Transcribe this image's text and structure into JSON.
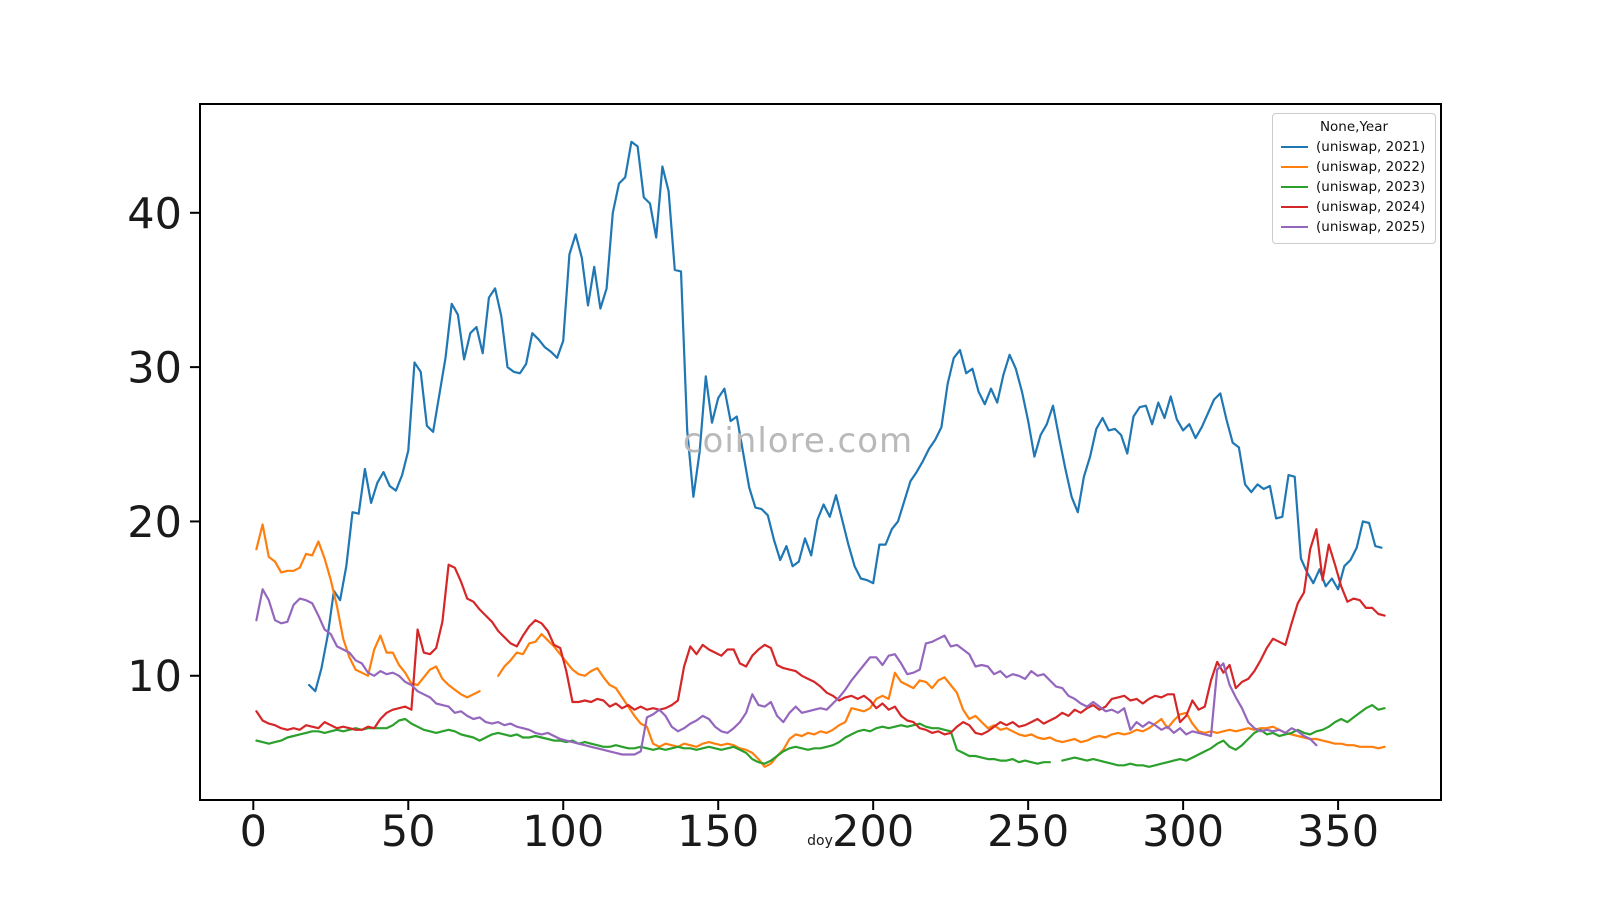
{
  "figure": {
    "watermark": "coinlore.com",
    "xlabel": "doy"
  },
  "legend": {
    "title": "None,Year",
    "entries": [
      {
        "label": "(uniswap, 2021)",
        "color": "#1f77b4"
      },
      {
        "label": "(uniswap, 2022)",
        "color": "#ff7f0e"
      },
      {
        "label": "(uniswap, 2023)",
        "color": "#2ca02c"
      },
      {
        "label": "(uniswap, 2024)",
        "color": "#d62728"
      },
      {
        "label": "(uniswap, 2025)",
        "color": "#9467bd"
      }
    ]
  },
  "axes": {
    "x_ticks": [
      "0",
      "50",
      "100",
      "150",
      "200",
      "250",
      "300",
      "350"
    ],
    "x_tick_values": [
      0,
      50,
      100,
      150,
      200,
      250,
      300,
      350
    ],
    "y_ticks": [
      "10",
      "20",
      "30",
      "40"
    ],
    "y_tick_values": [
      10,
      20,
      30,
      40
    ]
  },
  "chart_data": {
    "type": "line",
    "title": "",
    "xlabel": "doy",
    "ylabel": "",
    "x_unit": "day of year",
    "xlim": [
      -17.2,
      383.2
    ],
    "ylim": [
      1.95,
      47.05
    ],
    "grid": false,
    "legend_position": "upper right",
    "series": [
      {
        "name": "(uniswap, 2021)",
        "year": 2021,
        "color": "#1f77b4",
        "x_start": 18,
        "x_step": 2,
        "values": [
          9.4,
          9.0,
          10.5,
          12.6,
          15.5,
          14.9,
          17.1,
          20.6,
          20.5,
          23.4,
          21.2,
          22.5,
          23.2,
          22.3,
          22.0,
          23.0,
          24.6,
          30.3,
          29.7,
          26.2,
          25.8,
          28.2,
          30.6,
          34.1,
          33.4,
          30.5,
          32.2,
          32.6,
          30.9,
          34.5,
          35.1,
          33.3,
          30.0,
          29.7,
          29.6,
          30.2,
          32.2,
          31.8,
          31.3,
          31.0,
          30.6,
          31.7,
          37.3,
          38.6,
          37.1,
          34.0,
          36.5,
          33.8,
          35.1,
          40.0,
          41.9,
          42.3,
          44.6,
          44.3,
          41.0,
          40.6,
          38.4,
          43.0,
          41.4,
          36.3,
          36.2,
          25.9,
          21.6,
          24.5,
          29.4,
          26.4,
          28.0,
          28.6,
          26.5,
          26.8,
          24.5,
          22.2,
          20.9,
          20.8,
          20.4,
          18.8,
          17.5,
          18.4,
          17.1,
          17.4,
          18.9,
          17.8,
          20.1,
          21.1,
          20.3,
          21.7,
          20.1,
          18.5,
          17.1,
          16.3,
          16.2,
          16.0,
          18.5,
          18.5,
          19.5,
          20.0,
          21.3,
          22.6,
          23.2,
          23.9,
          24.7,
          25.3,
          26.1,
          28.9,
          30.6,
          31.1,
          29.6,
          29.9,
          28.4,
          27.6,
          28.6,
          27.7,
          29.5,
          30.8,
          29.9,
          28.4,
          26.5,
          24.2,
          25.6,
          26.3,
          27.5,
          25.4,
          23.4,
          21.6,
          20.6,
          22.9,
          24.2,
          26.0,
          26.7,
          25.9,
          26.0,
          25.6,
          24.4,
          26.8,
          27.4,
          27.5,
          26.3,
          27.7,
          26.7,
          28.1,
          26.6,
          25.9,
          26.3,
          25.4,
          26.1,
          27.0,
          27.9,
          28.3,
          26.6,
          25.1,
          24.8,
          22.4,
          21.9,
          22.4,
          22.1,
          22.3,
          20.2,
          20.3,
          23.0,
          22.9,
          17.6,
          16.7,
          16.0,
          16.9,
          15.8,
          16.3,
          15.6,
          17.1,
          17.5,
          18.3,
          20.0,
          19.9,
          18.4,
          18.3
        ]
      },
      {
        "name": "(uniswap, 2022)",
        "year": 2022,
        "color": "#ff7f0e",
        "x_start": 1,
        "x_step": 2,
        "values": [
          18.2,
          19.8,
          17.7,
          17.4,
          16.7,
          16.8,
          16.8,
          17.0,
          17.9,
          17.8,
          18.7,
          17.6,
          16.2,
          14.5,
          12.4,
          11.2,
          10.4,
          10.2,
          10.0,
          11.7,
          12.6,
          11.5,
          11.5,
          10.7,
          10.2,
          9.5,
          9.4,
          9.9,
          10.4,
          10.6,
          9.8,
          9.4,
          9.1,
          8.8,
          8.6,
          8.8,
          9.0,
          null,
          null,
          10.0,
          10.6,
          11.0,
          11.5,
          11.4,
          12.1,
          12.2,
          12.7,
          12.3,
          11.9,
          11.4,
          10.9,
          10.4,
          10.1,
          10.0,
          10.3,
          10.5,
          9.9,
          9.4,
          9.2,
          8.6,
          8.0,
          7.4,
          6.9,
          6.7,
          5.6,
          5.4,
          5.6,
          5.5,
          5.4,
          5.6,
          5.5,
          5.4,
          5.6,
          5.7,
          5.6,
          5.5,
          5.6,
          5.5,
          5.3,
          5.2,
          5.0,
          4.6,
          4.1,
          4.3,
          4.8,
          5.2,
          5.9,
          6.2,
          6.1,
          6.3,
          6.2,
          6.4,
          6.3,
          6.5,
          6.8,
          7.0,
          7.9,
          7.8,
          7.7,
          7.9,
          8.5,
          8.7,
          8.5,
          10.2,
          9.6,
          9.4,
          9.2,
          9.7,
          9.6,
          9.2,
          9.7,
          9.9,
          9.4,
          8.9,
          7.8,
          7.2,
          7.4,
          7.0,
          6.6,
          6.8,
          6.5,
          6.6,
          6.4,
          6.2,
          6.1,
          6.2,
          6.0,
          5.9,
          6.0,
          5.8,
          5.7,
          5.8,
          5.9,
          5.7,
          5.8,
          6.0,
          6.1,
          6.0,
          6.2,
          6.3,
          6.2,
          6.3,
          6.5,
          6.4,
          6.6,
          6.9,
          7.2,
          6.6,
          7.1,
          7.5,
          7.6,
          6.9,
          6.4,
          6.3,
          6.4,
          6.3,
          6.4,
          6.5,
          6.4,
          6.5,
          6.6,
          6.5,
          6.6,
          6.6,
          6.7,
          6.5,
          6.3,
          6.2,
          6.1,
          6.0,
          5.9,
          5.9,
          5.8,
          5.7,
          5.6,
          5.6,
          5.5,
          5.5,
          5.4,
          5.4,
          5.4,
          5.3,
          5.4
        ]
      },
      {
        "name": "(uniswap, 2023)",
        "year": 2023,
        "color": "#2ca02c",
        "x_start": 1,
        "x_step": 2,
        "values": [
          5.8,
          5.7,
          5.6,
          5.7,
          5.8,
          6.0,
          6.1,
          6.2,
          6.3,
          6.4,
          6.4,
          6.3,
          6.4,
          6.5,
          6.4,
          6.5,
          6.6,
          6.5,
          6.6,
          6.6,
          6.6,
          6.6,
          6.8,
          7.1,
          7.2,
          6.9,
          6.7,
          6.5,
          6.4,
          6.3,
          6.4,
          6.5,
          6.4,
          6.2,
          6.1,
          6.0,
          5.8,
          6.0,
          6.2,
          6.3,
          6.2,
          6.1,
          6.2,
          6.0,
          6.0,
          6.1,
          6.0,
          5.9,
          5.8,
          5.8,
          5.7,
          5.8,
          5.6,
          5.7,
          5.6,
          5.5,
          5.4,
          5.4,
          5.5,
          5.4,
          5.3,
          5.3,
          5.4,
          5.3,
          5.2,
          5.3,
          5.2,
          5.3,
          5.4,
          5.3,
          5.3,
          5.2,
          5.3,
          5.4,
          5.3,
          5.2,
          5.3,
          5.4,
          5.2,
          5.0,
          4.6,
          4.4,
          4.3,
          4.5,
          4.8,
          5.1,
          5.3,
          5.4,
          5.3,
          5.2,
          5.3,
          5.3,
          5.4,
          5.5,
          5.7,
          6.0,
          6.2,
          6.4,
          6.5,
          6.4,
          6.6,
          6.7,
          6.6,
          6.7,
          6.8,
          6.7,
          6.8,
          6.9,
          6.7,
          6.6,
          6.6,
          6.5,
          6.4,
          5.2,
          5.0,
          4.8,
          4.8,
          4.7,
          4.6,
          4.6,
          4.5,
          4.5,
          4.6,
          4.4,
          4.5,
          4.4,
          4.3,
          4.4,
          4.4,
          null,
          4.5,
          4.6,
          4.7,
          4.6,
          4.5,
          4.6,
          4.5,
          4.4,
          4.3,
          4.2,
          4.2,
          4.3,
          4.2,
          4.2,
          4.1,
          4.2,
          4.3,
          4.4,
          4.5,
          4.6,
          4.5,
          4.7,
          4.9,
          5.1,
          5.3,
          5.6,
          5.8,
          5.4,
          5.2,
          5.5,
          5.9,
          6.3,
          6.5,
          6.2,
          6.3,
          6.1,
          6.2,
          6.3,
          6.5,
          6.3,
          6.2,
          6.4,
          6.5,
          6.7,
          7.0,
          7.2,
          7.0,
          7.3,
          7.6,
          7.9,
          8.1,
          7.8,
          7.9
        ]
      },
      {
        "name": "(uniswap, 2024)",
        "year": 2024,
        "color": "#d62728",
        "x_start": 1,
        "x_step": 2,
        "values": [
          7.7,
          7.1,
          6.9,
          6.8,
          6.6,
          6.5,
          6.6,
          6.5,
          6.8,
          6.7,
          6.6,
          7.0,
          6.8,
          6.6,
          6.7,
          6.6,
          6.5,
          6.5,
          6.7,
          6.6,
          7.2,
          7.6,
          7.8,
          7.9,
          8.0,
          7.8,
          13.0,
          11.5,
          11.4,
          11.8,
          13.5,
          17.2,
          17.0,
          16.1,
          15.0,
          14.8,
          14.3,
          13.9,
          13.5,
          12.9,
          12.5,
          12.1,
          11.9,
          12.6,
          13.2,
          13.6,
          13.4,
          12.9,
          12.0,
          11.8,
          10.3,
          8.3,
          8.3,
          8.4,
          8.3,
          8.5,
          8.4,
          8.0,
          8.2,
          7.9,
          8.1,
          7.8,
          8.0,
          7.8,
          7.9,
          7.8,
          7.9,
          8.1,
          8.4,
          10.6,
          11.9,
          11.4,
          12.0,
          11.7,
          11.5,
          11.3,
          11.7,
          11.7,
          10.8,
          10.6,
          11.3,
          11.7,
          12.0,
          11.8,
          10.7,
          10.5,
          10.4,
          10.3,
          10.0,
          9.8,
          9.6,
          9.3,
          8.9,
          8.7,
          8.4,
          8.6,
          8.7,
          8.5,
          8.7,
          8.4,
          7.9,
          8.2,
          7.8,
          8.0,
          7.4,
          7.1,
          7.0,
          6.6,
          6.5,
          6.3,
          6.4,
          6.2,
          6.3,
          6.7,
          7.0,
          6.8,
          6.3,
          6.2,
          6.4,
          6.7,
          7.0,
          6.8,
          7.0,
          6.7,
          6.8,
          7.0,
          7.2,
          6.9,
          7.1,
          7.3,
          7.6,
          7.4,
          7.8,
          7.6,
          7.9,
          8.1,
          7.8,
          8.0,
          8.5,
          8.6,
          8.7,
          8.4,
          8.5,
          8.2,
          8.5,
          8.7,
          8.6,
          8.8,
          8.8,
          7.0,
          7.4,
          8.4,
          7.8,
          8.0,
          9.7,
          10.9,
          10.2,
          10.7,
          9.2,
          9.6,
          9.8,
          10.3,
          11.0,
          11.8,
          12.4,
          12.2,
          12.0,
          13.4,
          14.7,
          15.4,
          18.2,
          19.5,
          16.2,
          18.5,
          17.2,
          15.8,
          14.8,
          15.0,
          14.9,
          14.4,
          14.4,
          14.0,
          13.9
        ]
      },
      {
        "name": "(uniswap, 2025)",
        "year": 2025,
        "color": "#9467bd",
        "x_start": 1,
        "x_step": 2,
        "values": [
          13.6,
          15.6,
          14.9,
          13.6,
          13.4,
          13.5,
          14.6,
          15.0,
          14.9,
          14.7,
          13.9,
          13.0,
          12.7,
          11.9,
          11.7,
          11.5,
          11.0,
          10.8,
          10.2,
          10.0,
          10.3,
          10.1,
          10.2,
          10.0,
          9.6,
          9.4,
          9.0,
          8.8,
          8.6,
          8.2,
          8.1,
          8.0,
          7.6,
          7.7,
          7.4,
          7.2,
          7.3,
          7.0,
          6.9,
          7.0,
          6.8,
          6.9,
          6.7,
          6.6,
          6.5,
          6.3,
          6.2,
          6.3,
          6.1,
          5.9,
          5.8,
          5.7,
          5.6,
          5.5,
          5.4,
          5.3,
          5.2,
          5.1,
          5.0,
          4.9,
          4.9,
          4.9,
          5.1,
          7.3,
          7.5,
          7.8,
          7.4,
          6.7,
          6.4,
          6.6,
          6.9,
          7.1,
          7.4,
          7.2,
          6.7,
          6.4,
          6.3,
          6.6,
          7.0,
          7.6,
          8.8,
          8.1,
          8.0,
          8.3,
          7.4,
          7.0,
          7.6,
          8.0,
          7.6,
          7.7,
          7.8,
          7.9,
          7.8,
          8.2,
          8.6,
          9.1,
          9.7,
          10.2,
          10.7,
          11.2,
          11.2,
          10.7,
          11.3,
          11.4,
          10.8,
          10.1,
          10.2,
          10.4,
          12.1,
          12.2,
          12.4,
          12.6,
          11.9,
          12.0,
          11.7,
          11.4,
          10.6,
          10.7,
          10.6,
          10.1,
          10.3,
          9.9,
          10.1,
          10.0,
          9.8,
          10.3,
          10.0,
          10.1,
          9.7,
          9.3,
          9.2,
          8.7,
          8.5,
          8.2,
          8.0,
          8.3,
          8.0,
          7.7,
          7.8,
          7.6,
          7.9,
          6.5,
          7.0,
          6.7,
          7.0,
          6.8,
          6.5,
          6.7,
          6.3,
          6.6,
          6.2,
          6.4,
          6.3,
          6.2,
          6.1,
          10.4,
          10.8,
          9.4,
          8.6,
          7.9,
          7.0,
          6.6,
          6.4,
          6.5,
          6.4,
          6.5,
          6.3,
          6.6,
          6.4,
          6.1,
          5.9,
          5.5
        ]
      }
    ]
  }
}
